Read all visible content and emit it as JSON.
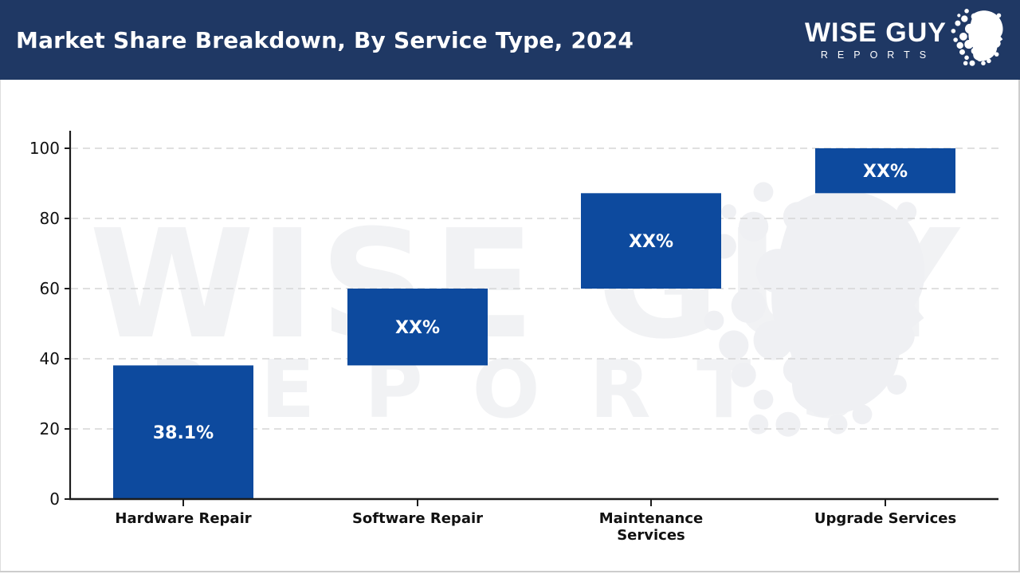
{
  "header": {
    "title": "Market Share Breakdown, By Service Type, 2024",
    "bg_color": "#1f3864",
    "logo": {
      "line1": "WISE GUY",
      "line2": "REPORTS"
    }
  },
  "watermark": {
    "line1": "WISE GUY",
    "line2": "REPORTS"
  },
  "chart_data": {
    "type": "bar",
    "subtype": "floating-waterfall",
    "title": "Market Share Breakdown, By Service Type, 2024",
    "categories": [
      "Hardware Repair",
      "Software Repair",
      "Maintenance Services",
      "Upgrade Services"
    ],
    "category_lines": [
      [
        "Hardware Repair"
      ],
      [
        "Software Repair"
      ],
      [
        "Maintenance",
        "Services"
      ],
      [
        "Upgrade Services"
      ]
    ],
    "segments": [
      {
        "category": "Hardware Repair",
        "start": 0,
        "end": 38.1,
        "label": "38.1%"
      },
      {
        "category": "Software Repair",
        "start": 38.1,
        "end": 60,
        "label": "XX%"
      },
      {
        "category": "Maintenance Services",
        "start": 60,
        "end": 87.2,
        "label": "XX%"
      },
      {
        "category": "Upgrade Services",
        "start": 87.2,
        "end": 100,
        "label": "XX%"
      }
    ],
    "xlabel": "",
    "ylabel": "",
    "ylim": [
      0,
      100
    ],
    "yticks": [
      0,
      20,
      40,
      60,
      80,
      100
    ],
    "grid": "horizontal-dashed",
    "legend": "none",
    "bar_color": "#0d4a9e",
    "bar_label_color": "#ffffff",
    "axis_color": "#1c1c1c",
    "tick_label_color": "#111111",
    "gridline_color": "#d6d6d6"
  }
}
